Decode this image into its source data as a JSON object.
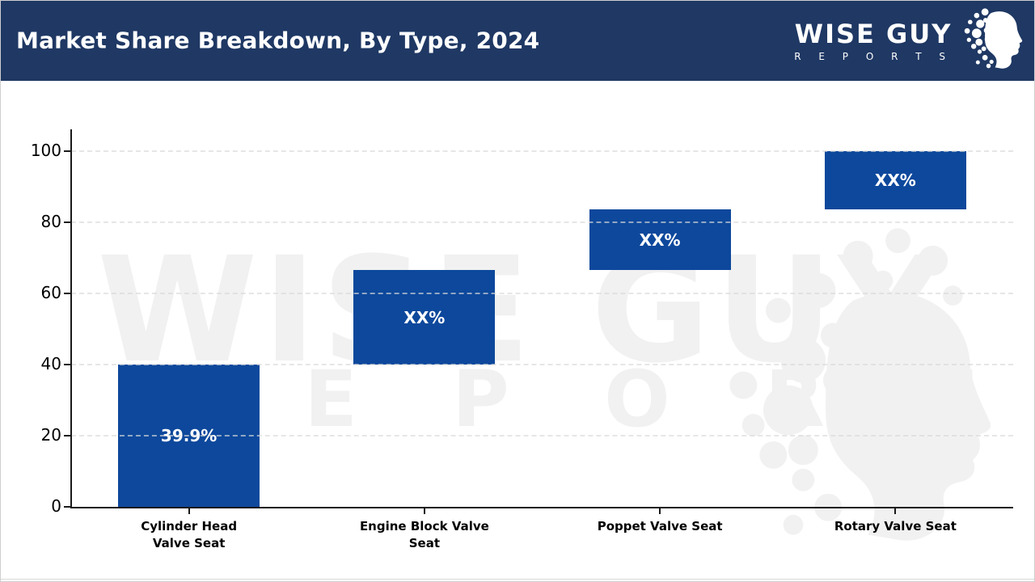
{
  "page": {
    "background": "#ffffff",
    "border_color": "#cfcfcf"
  },
  "header": {
    "background": "#1f3864",
    "title": "Market Share Breakdown, By Type, 2024",
    "logo": {
      "name": "WISE GUY",
      "sub": "R E P O R T S"
    }
  },
  "watermark": {
    "line1": "WISE GUY",
    "line2": "R E P O R T S"
  },
  "chart_data": {
    "type": "bar",
    "subtype": "waterfall",
    "title": "Market Share Breakdown, By Type, 2024",
    "categories": [
      "Cylinder Head\nValve Seat",
      "Engine Block Valve\nSeat",
      "Poppet Valve Seat",
      "Rotary Valve Seat"
    ],
    "bars": [
      {
        "category": "Cylinder Head Valve Seat",
        "start": 0,
        "end": 39.9,
        "value": 39.9,
        "label": "39.9%"
      },
      {
        "category": "Engine Block Valve Seat",
        "start": 39.9,
        "end": 66.6,
        "value": 26.7,
        "label": "XX%"
      },
      {
        "category": "Poppet Valve Seat",
        "start": 66.6,
        "end": 83.6,
        "value": 17.0,
        "label": "XX%"
      },
      {
        "category": "Rotary Valve Seat",
        "start": 83.6,
        "end": 100.0,
        "value": 16.4,
        "label": "XX%"
      }
    ],
    "ylim": [
      0,
      100
    ],
    "yticks": [
      0,
      20,
      40,
      60,
      80,
      100
    ],
    "grid": "horizontal-dashed",
    "legend": "none",
    "bar_color": "#0d489c",
    "bar_label_color": "#ffffff",
    "axis_color": "#1a1a1a",
    "grid_color": "#d9d9d9"
  }
}
